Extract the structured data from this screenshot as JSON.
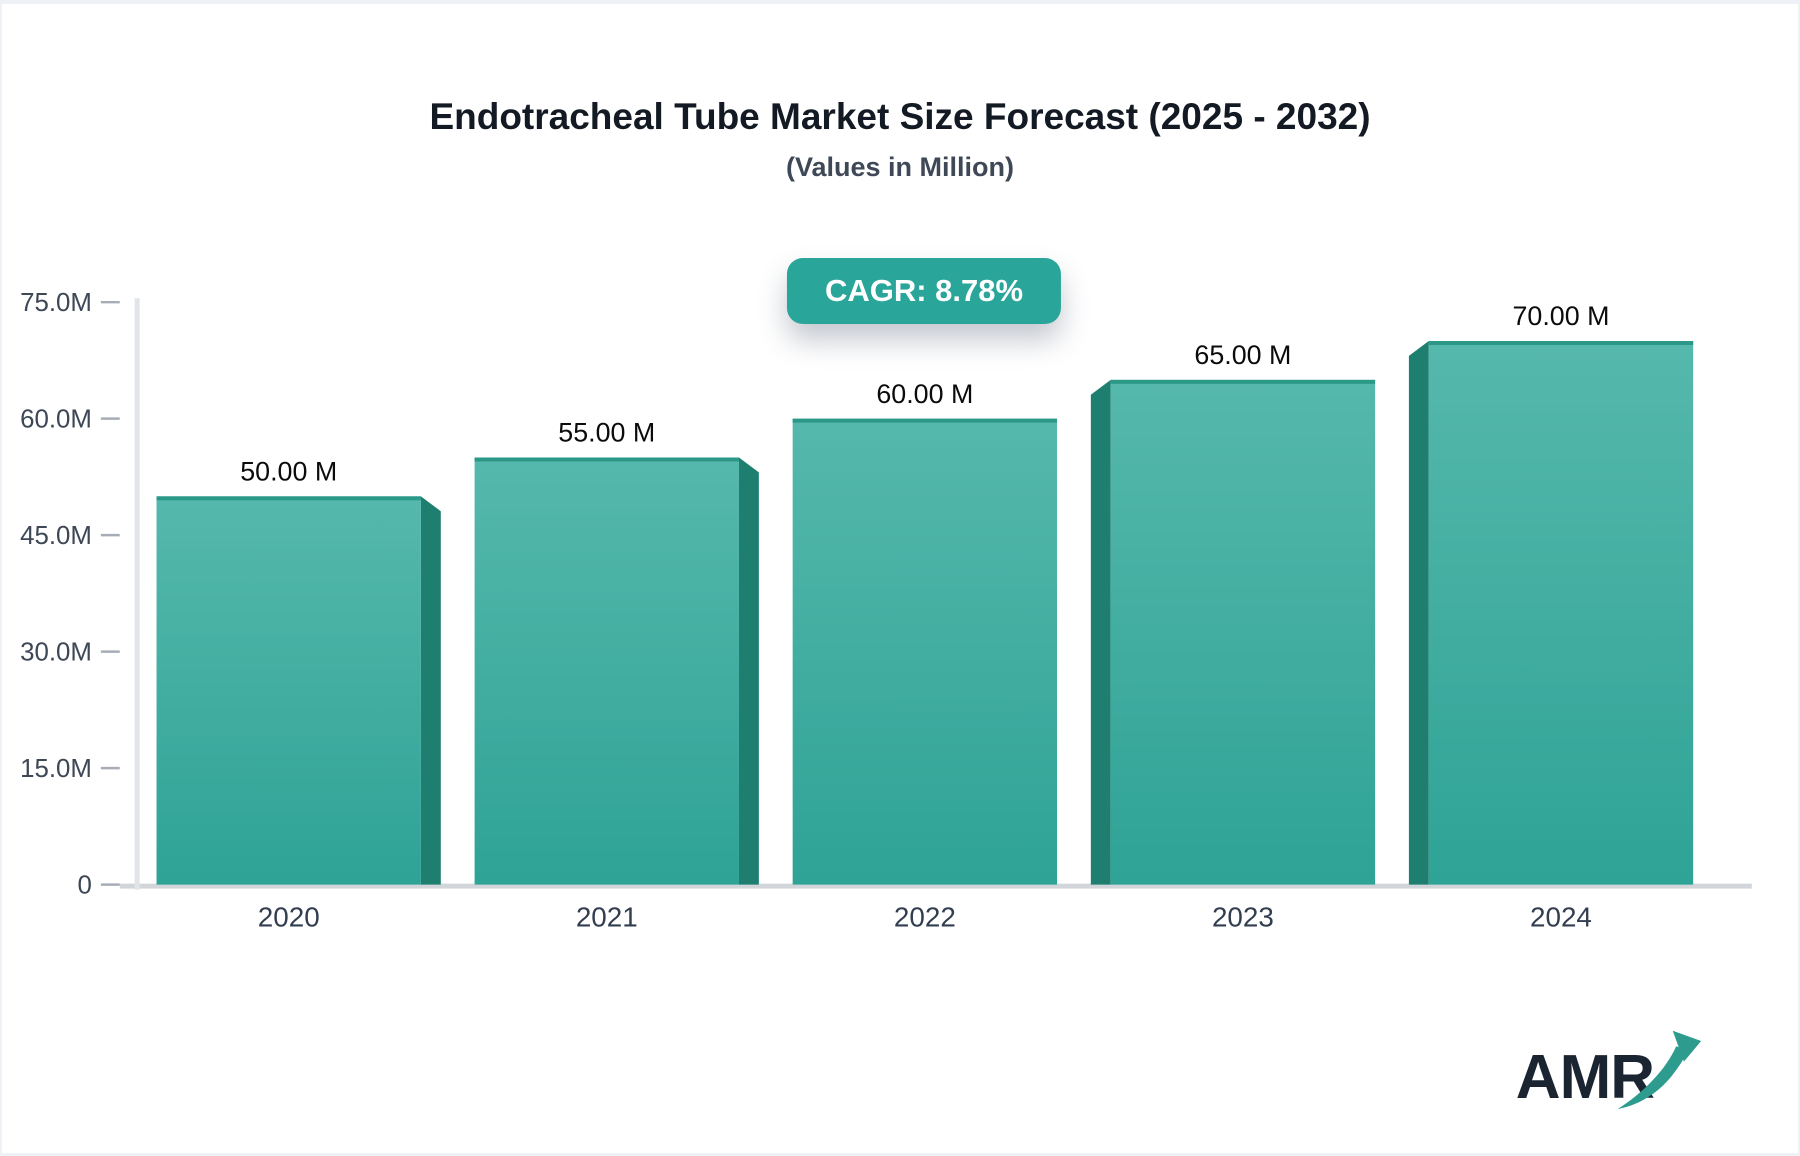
{
  "header": {
    "title": "Endotracheal Tube Market Size Forecast (2025 - 2032)",
    "subtitle": "(Values in Million)"
  },
  "badge": {
    "label": "CAGR: 8.78%"
  },
  "chart_data": {
    "type": "bar",
    "title": "Endotracheal Tube Market Size Forecast (2025 - 2032)",
    "subtitle": "(Values in Million)",
    "categories": [
      "2020",
      "2021",
      "2022",
      "2023",
      "2024"
    ],
    "values": [
      50,
      55,
      60,
      65,
      70
    ],
    "value_labels": [
      "50.00 M",
      "55.00 M",
      "60.00 M",
      "65.00 M",
      "70.00 M"
    ],
    "unit": "Million",
    "cagr": "8.78%",
    "xlabel": "",
    "ylabel": "",
    "ylim": [
      0,
      75
    ],
    "grid": false,
    "legend": false,
    "style": "pseudo-3d-bars",
    "yaxis_ticks": [
      {
        "value": 0,
        "label": "0"
      },
      {
        "value": 15,
        "label": "15.0M"
      },
      {
        "value": 30,
        "label": "30.0M"
      },
      {
        "value": 45,
        "label": "45.0M"
      },
      {
        "value": 60,
        "label": "60.0M"
      },
      {
        "value": 75,
        "label": "75.0M"
      }
    ],
    "colors": {
      "bar_face_top": "#56b8ac",
      "bar_face_bottom": "#2ea396",
      "bar_top_border": "#2b9888",
      "bar_side": "#1e7e70",
      "axis_vline": "#e1e4e9",
      "axis_baseline": "#d2d6db",
      "tick_dash": "#a7adb6",
      "tick_label": "#3e4756",
      "category_label": "#323e50",
      "value_label": "#0b0b0b"
    }
  },
  "theme": {
    "card_bg": "#ffffff",
    "title_color": "#141a24",
    "subtitle_color": "#3f4857",
    "badge_bg": "#2aa59a",
    "badge_text": "#ffffff",
    "logo_text_color": "#1b2531",
    "logo_arrow_color": "#2d9b8d"
  },
  "logo": {
    "text": "AMR",
    "arrow_icon": "growth-trend-arrow"
  }
}
